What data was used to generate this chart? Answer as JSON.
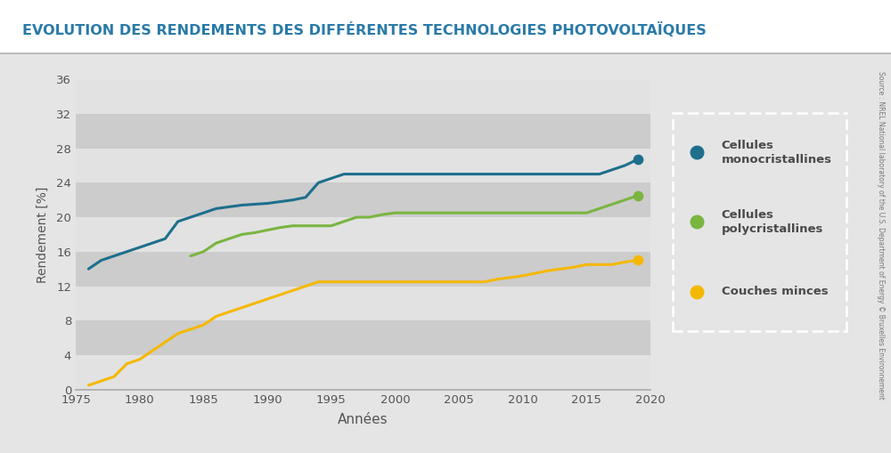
{
  "title": "EVOLUTION DES RENDEMENTS DES DIFFÉRENTES TECHNOLOGIES PHOTOVOLTAÏQUES",
  "title_color": "#2a7aa8",
  "xlabel": "Années",
  "ylabel": "Rendement [%]",
  "fig_bg_color": "#e5e5e5",
  "plot_bg_color": "#d8d8d8",
  "stripe_colors": [
    "#e2e2e2",
    "#cccccc"
  ],
  "xlim": [
    1975,
    2020
  ],
  "ylim": [
    0,
    36
  ],
  "yticks": [
    0,
    4,
    8,
    12,
    16,
    20,
    24,
    28,
    32,
    36
  ],
  "xticks": [
    1975,
    1980,
    1985,
    1990,
    1995,
    2000,
    2005,
    2010,
    2015,
    2020
  ],
  "source_text": "Source : NREL National laboratory of the U.S. Department of Energy © Bruxelles Environnement",
  "mono_color": "#1d6f8c",
  "poly_color": "#7ab540",
  "thin_color": "#f5b800",
  "mono_label": "Cellules\nmonocristallines",
  "poly_label": "Cellules\npolycristallines",
  "thin_label": "Couches minces",
  "mono_x": [
    1976,
    1977,
    1978,
    1979,
    1980,
    1981,
    1982,
    1983,
    1984,
    1985,
    1986,
    1987,
    1988,
    1989,
    1990,
    1991,
    1992,
    1993,
    1994,
    1995,
    1996,
    1997,
    1998,
    1999,
    2000,
    2001,
    2002,
    2003,
    2004,
    2005,
    2006,
    2007,
    2008,
    2009,
    2010,
    2011,
    2012,
    2013,
    2014,
    2015,
    2016,
    2017,
    2018,
    2019
  ],
  "mono_y": [
    14.0,
    15.0,
    15.5,
    16.0,
    16.5,
    17.0,
    17.5,
    19.5,
    20.0,
    20.5,
    21.0,
    21.2,
    21.4,
    21.5,
    21.6,
    21.8,
    22.0,
    22.3,
    24.0,
    24.5,
    25.0,
    25.0,
    25.0,
    25.0,
    25.0,
    25.0,
    25.0,
    25.0,
    25.0,
    25.0,
    25.0,
    25.0,
    25.0,
    25.0,
    25.0,
    25.0,
    25.0,
    25.0,
    25.0,
    25.0,
    25.0,
    25.5,
    26.0,
    26.7
  ],
  "poly_x": [
    1984,
    1985,
    1986,
    1987,
    1988,
    1989,
    1990,
    1991,
    1992,
    1993,
    1994,
    1995,
    1996,
    1997,
    1998,
    1999,
    2000,
    2001,
    2002,
    2003,
    2004,
    2005,
    2006,
    2007,
    2008,
    2009,
    2010,
    2011,
    2012,
    2013,
    2014,
    2015,
    2016,
    2017,
    2018,
    2019
  ],
  "poly_y": [
    15.5,
    16.0,
    17.0,
    17.5,
    18.0,
    18.2,
    18.5,
    18.8,
    19.0,
    19.0,
    19.0,
    19.0,
    19.5,
    20.0,
    20.0,
    20.3,
    20.5,
    20.5,
    20.5,
    20.5,
    20.5,
    20.5,
    20.5,
    20.5,
    20.5,
    20.5,
    20.5,
    20.5,
    20.5,
    20.5,
    20.5,
    20.5,
    21.0,
    21.5,
    22.0,
    22.5
  ],
  "thin_x": [
    1976,
    1977,
    1978,
    1979,
    1980,
    1981,
    1982,
    1983,
    1984,
    1985,
    1986,
    1987,
    1988,
    1989,
    1990,
    1991,
    1992,
    1993,
    1994,
    1995,
    1996,
    1997,
    1998,
    1999,
    2000,
    2001,
    2002,
    2003,
    2004,
    2005,
    2006,
    2007,
    2008,
    2009,
    2010,
    2011,
    2012,
    2013,
    2014,
    2015,
    2016,
    2017,
    2018,
    2019
  ],
  "thin_y": [
    0.5,
    1.0,
    1.5,
    3.0,
    3.5,
    4.5,
    5.5,
    6.5,
    7.0,
    7.5,
    8.5,
    9.0,
    9.5,
    10.0,
    10.5,
    11.0,
    11.5,
    12.0,
    12.5,
    12.5,
    12.5,
    12.5,
    12.5,
    12.5,
    12.5,
    12.5,
    12.5,
    12.5,
    12.5,
    12.5,
    12.5,
    12.5,
    12.8,
    13.0,
    13.2,
    13.5,
    13.8,
    14.0,
    14.2,
    14.5,
    14.5,
    14.5,
    14.8,
    15.0
  ],
  "title_bar_color": "#ffffff",
  "title_bar_height": 0.115,
  "separator_color": "#bbbbbb",
  "tick_label_color": "#555555",
  "axis_label_color": "#555555",
  "legend_border_color": "#ffffff",
  "legend_text_color": "#4a4a4a"
}
